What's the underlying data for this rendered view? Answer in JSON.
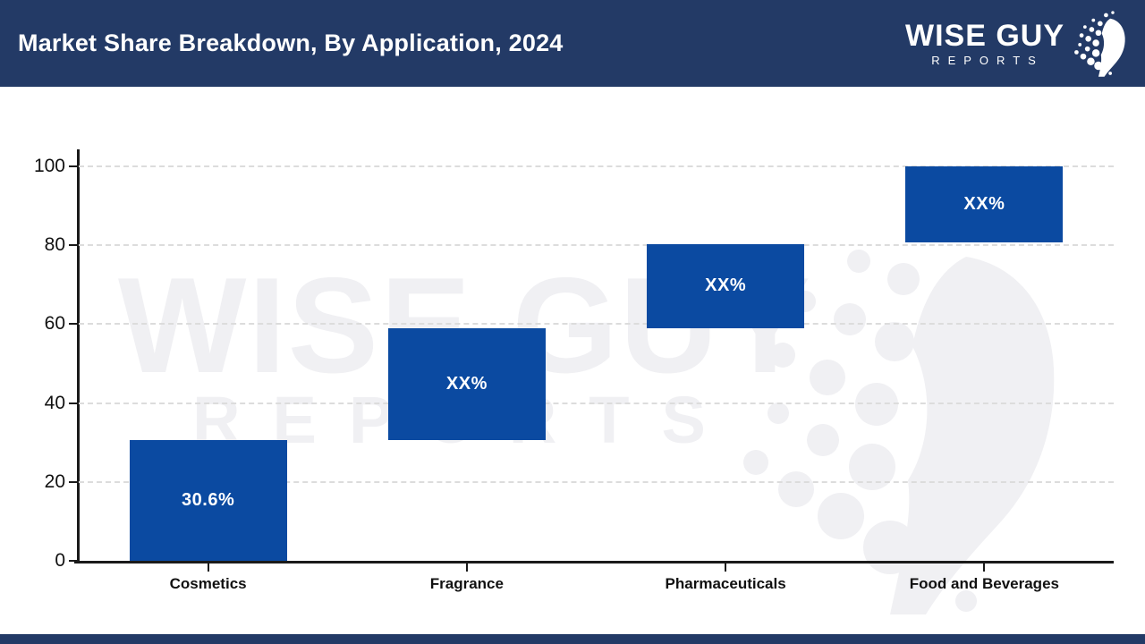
{
  "header": {
    "title": "Market Share Breakdown, By Application, 2024",
    "logo": {
      "line1": "WISE GUY",
      "line2": "REPORTS"
    }
  },
  "watermark": {
    "line1": "WISE GUY",
    "line2": "REPORTS"
  },
  "footer": {
    "present": true
  },
  "colors": {
    "header_bg": "#233a66",
    "bar_fill": "#0b4aa1",
    "bar_label": "#ffffff",
    "grid": "#dcdcdc",
    "axis": "#1a1a1a",
    "watermark": "#f0f0f3",
    "background": "#ffffff",
    "title_text": "#ffffff"
  },
  "chart_data": {
    "type": "bar",
    "subtype": "waterfall-floating-bars",
    "title": "Market Share Breakdown, By Application, 2024",
    "categories": [
      "Cosmetics",
      "Fragrance",
      "Pharmaceuticals",
      "Food and Beverages"
    ],
    "segments": [
      {
        "category": "Cosmetics",
        "start": 0,
        "end": 30.6,
        "label": "30.6%"
      },
      {
        "category": "Fragrance",
        "start": 30.6,
        "end": 59,
        "label": "XX%"
      },
      {
        "category": "Pharmaceuticals",
        "start": 59,
        "end": 80.3,
        "label": "XX%"
      },
      {
        "category": "Food and Beverages",
        "start": 80.7,
        "end": 100,
        "label": "XX%"
      }
    ],
    "xlabel": "",
    "ylabel": "",
    "ylim": [
      0,
      100
    ],
    "yticks": [
      0,
      20,
      40,
      60,
      80,
      100
    ],
    "grid": "horizontal-dashed",
    "legend": "none",
    "bar_color": "#0b4aa1",
    "bar_label_color": "#ffffff"
  }
}
